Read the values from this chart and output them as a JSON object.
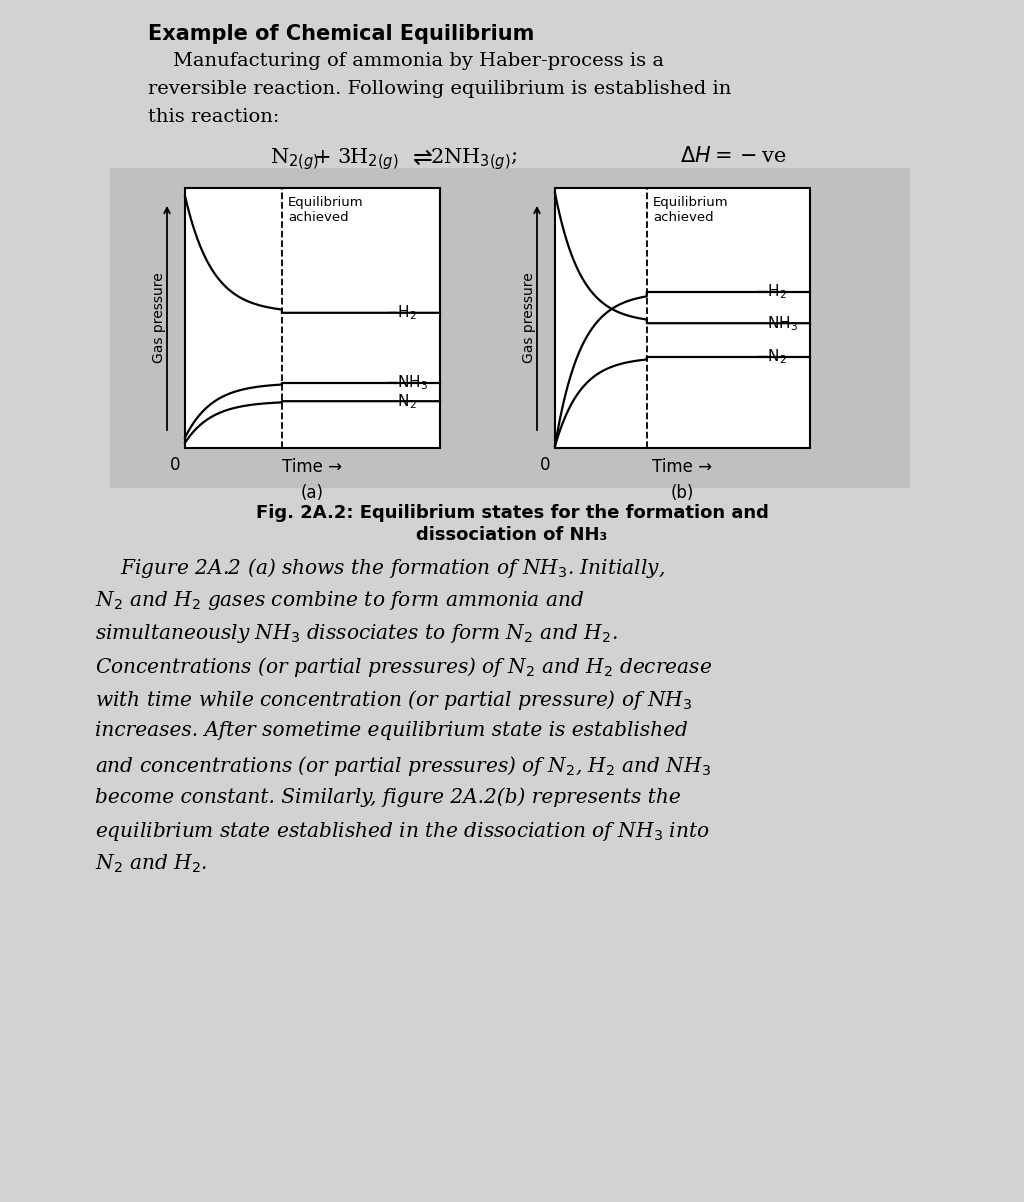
{
  "bg_color": "#d8d8d8",
  "graph_bg": "#d0d0d0",
  "title": "Example of Chemical Equilibrium",
  "sub_a": "(a)",
  "sub_b": "(b)",
  "fig_caption_line1": "Fig. 2A.2: Equilibrium states for the formation and",
  "fig_caption_line2": "dissociation of NH₃",
  "gas_pressure": "Gas pressure",
  "time_arrow": "Time →",
  "label_H2_a": "H₂",
  "label_NH3_a": "NH₃",
  "label_N2_a": "N₂",
  "label_H2_b": "H₂",
  "label_NH3_b": "NH₃",
  "label_N2_b": "N₂",
  "eq_achieved": "Equilibrium\nachieved"
}
